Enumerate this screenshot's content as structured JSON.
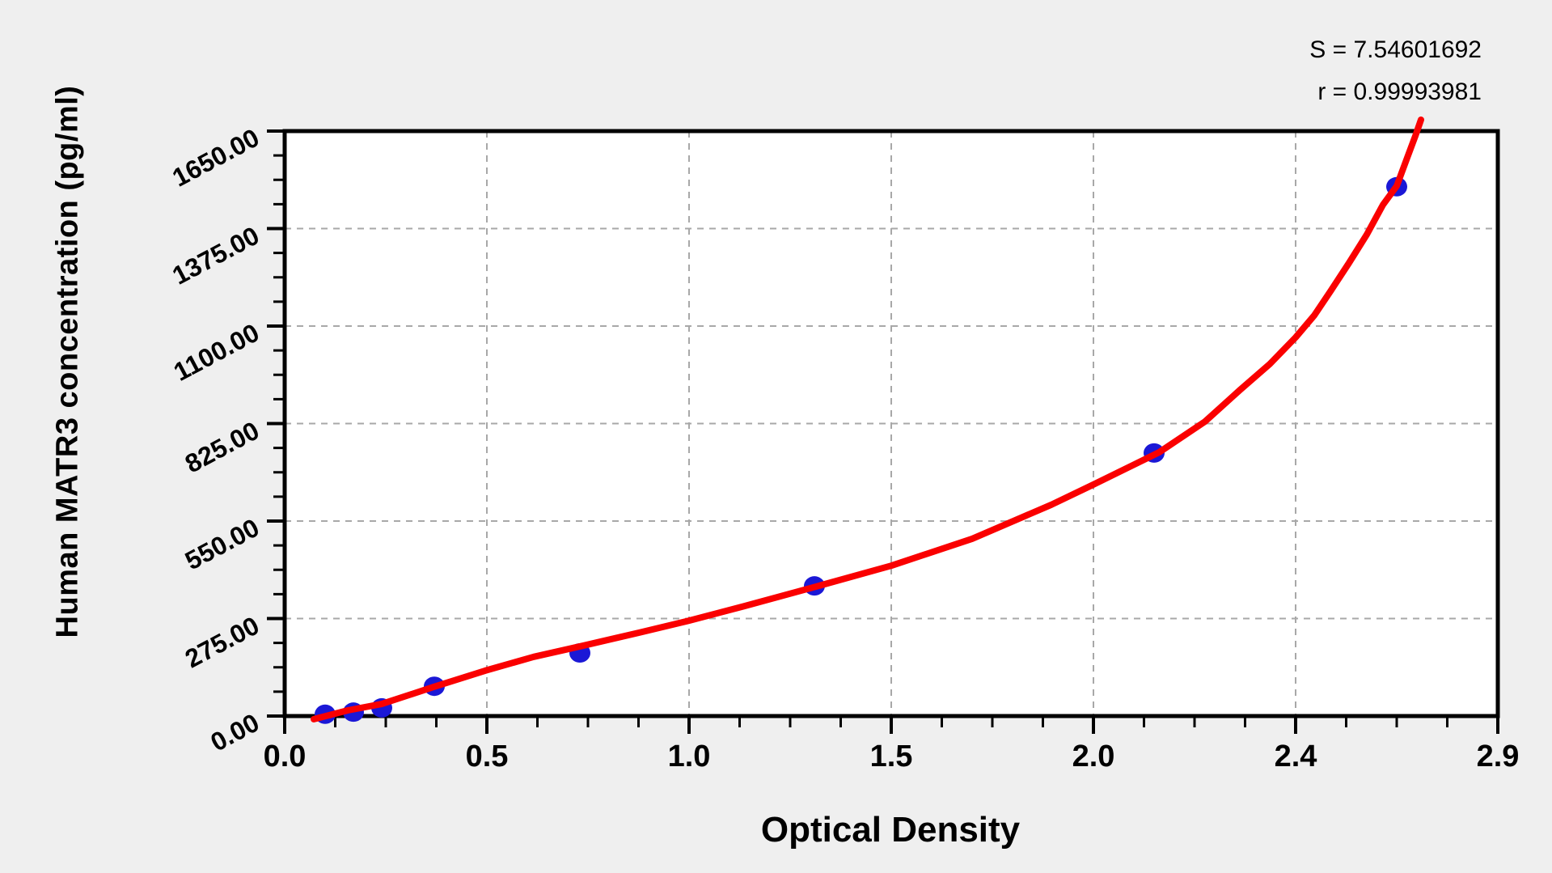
{
  "stats": {
    "s_line": "S = 7.54601692",
    "r_line": "r = 0.99993981"
  },
  "chart_data": {
    "type": "scatter",
    "title": "",
    "xlabel": "Optical Density",
    "ylabel": "Human MATR3 concentration (pg/ml)",
    "xlim": [
      0.0,
      2.9
    ],
    "ylim": [
      0,
      1650
    ],
    "x_ticks": {
      "values": [
        0.0,
        0.5,
        1.0,
        1.5,
        2.0,
        2.4,
        2.9
      ],
      "labels": [
        "0.0",
        "0.5",
        "1.0",
        "1.5",
        "2.0",
        "2.4",
        "2.9"
      ],
      "minor_divisions": 4
    },
    "y_ticks": {
      "values": [
        0,
        275,
        550,
        825,
        1100,
        1375,
        1650
      ],
      "labels": [
        "0.00",
        "275.00",
        "550.00",
        "825.00",
        "1100.00",
        "1375.00",
        "1650.00"
      ],
      "minor_divisions": 4
    },
    "grid": {
      "show": true,
      "style": "dashed",
      "at": "major-ticks"
    },
    "legend": "none",
    "series": [
      {
        "name": "standard-points",
        "type": "scatter",
        "color": "#1b18d6",
        "points": [
          [
            0.1,
            5
          ],
          [
            0.17,
            11
          ],
          [
            0.24,
            23
          ],
          [
            0.37,
            84
          ],
          [
            0.73,
            178
          ],
          [
            1.31,
            367
          ],
          [
            2.12,
            742
          ],
          [
            2.65,
            1493
          ]
        ]
      },
      {
        "name": "fitted-curve",
        "type": "line",
        "color": "#fa0000",
        "points": [
          [
            0.072,
            -9
          ],
          [
            0.156,
            16
          ],
          [
            0.24,
            34
          ],
          [
            0.368,
            82
          ],
          [
            0.496,
            128
          ],
          [
            0.616,
            167
          ],
          [
            0.74,
            199
          ],
          [
            0.876,
            235
          ],
          [
            1.0,
            269
          ],
          [
            1.136,
            310
          ],
          [
            1.32,
            367
          ],
          [
            1.5,
            424
          ],
          [
            1.7,
            500
          ],
          [
            1.896,
            596
          ],
          [
            2.0,
            653
          ],
          [
            2.13,
            744
          ],
          [
            2.221,
            831
          ],
          [
            2.29,
            920
          ],
          [
            2.349,
            993
          ],
          [
            2.4,
            1068
          ],
          [
            2.446,
            1130
          ],
          [
            2.486,
            1198
          ],
          [
            2.532,
            1278
          ],
          [
            2.576,
            1358
          ],
          [
            2.616,
            1442
          ],
          [
            2.65,
            1495
          ],
          [
            2.676,
            1575
          ],
          [
            2.696,
            1636
          ],
          [
            2.71,
            1682
          ]
        ]
      }
    ],
    "annotations": [
      "S = 7.54601692",
      "r = 0.99993981"
    ]
  },
  "colors": {
    "page_bg": "#efefef",
    "plot_bg": "#ffffff",
    "frame": "#000000",
    "grid": "#a8a8a8",
    "point": "#1b18d6",
    "curve": "#fa0000",
    "text": "#000000"
  }
}
